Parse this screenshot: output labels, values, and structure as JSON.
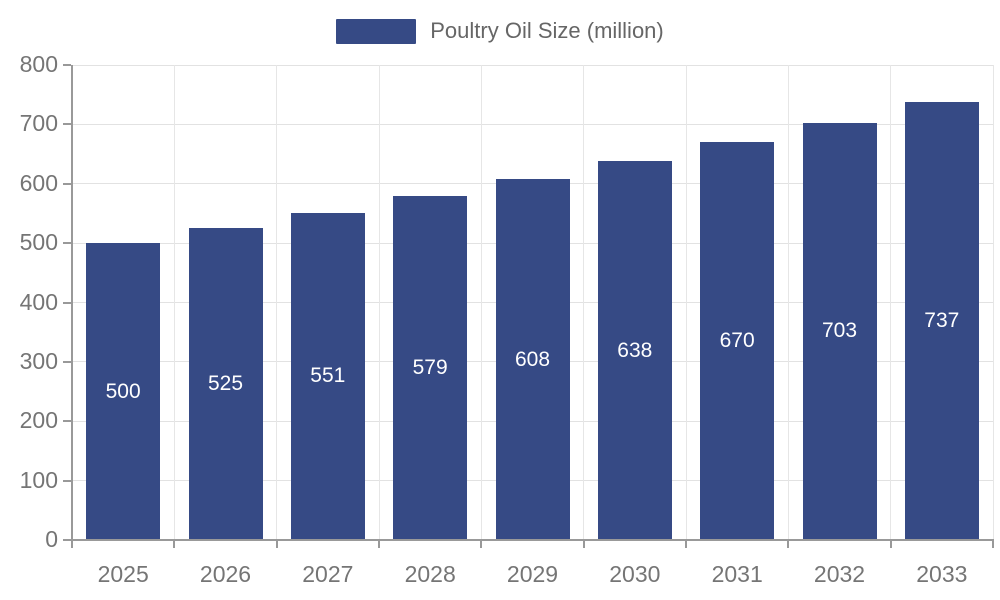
{
  "legend": {
    "label": "Poultry Oil Size (million)"
  },
  "chart_data": {
    "type": "bar",
    "title": "",
    "categories": [
      "2025",
      "2026",
      "2027",
      "2028",
      "2029",
      "2030",
      "2031",
      "2032",
      "2033"
    ],
    "values": [
      500,
      525,
      551,
      579,
      608,
      638,
      670,
      703,
      737
    ],
    "series_name": "Poultry Oil Size (million)",
    "xlabel": "",
    "ylabel": "",
    "ylim": [
      0,
      800
    ],
    "yticks": [
      0,
      100,
      200,
      300,
      400,
      500,
      600,
      700,
      800
    ],
    "grid": true,
    "legend_position": "top",
    "value_labels": "inside-center",
    "colors": {
      "bar": "#364A85",
      "value_label": "#ffffff",
      "grid_h": "#e2e2e2",
      "grid_v": "#e6e6e6",
      "axis": "#999999",
      "tick_label": "#757575",
      "legend_text": "#666666",
      "background": "#ffffff"
    }
  }
}
